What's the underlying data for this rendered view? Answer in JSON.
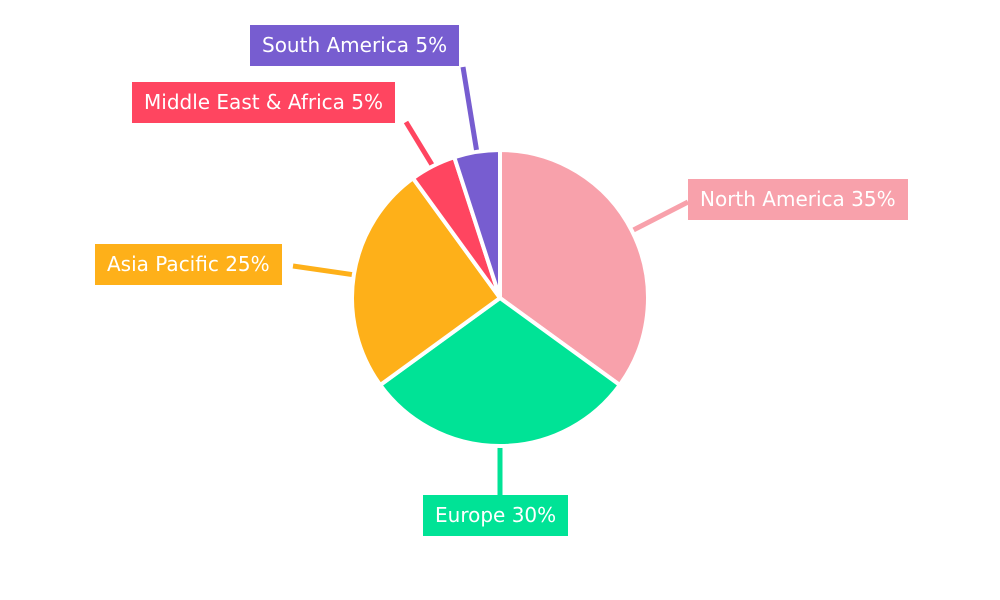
{
  "canvas": {
    "background": "#ffffff"
  },
  "chart_data": {
    "type": "pie",
    "title": "",
    "unit": "percent",
    "start_angle_deg": 0,
    "direction": "clockwise",
    "legend_position": "none",
    "label_style": "callout-boxes-with-leader-lines",
    "categories": [
      "North America",
      "Europe",
      "Asia Pacific",
      "Middle East & Africa",
      "South America"
    ],
    "values": [
      35,
      30,
      25,
      5,
      5
    ],
    "slices": [
      {
        "label": "North America",
        "value": 35,
        "display": "North America 35%",
        "color": "#F8A1AB"
      },
      {
        "label": "Europe",
        "value": 30,
        "display": "Europe 30%",
        "color": "#00E396"
      },
      {
        "label": "Asia Pacific",
        "value": 25,
        "display": "Asia Pacific 25%",
        "color": "#FEB019"
      },
      {
        "label": "Middle East & Africa",
        "value": 5,
        "display": "Middle East & Africa 5%",
        "color": "#FF4560"
      },
      {
        "label": "South America",
        "value": 5,
        "display": "South America 5%",
        "color": "#775DD0"
      }
    ],
    "slice_border_color": "#ffffff"
  }
}
